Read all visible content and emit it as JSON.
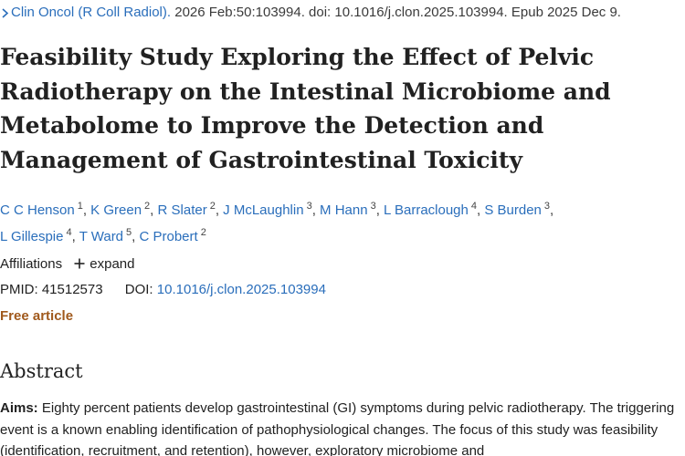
{
  "citation": {
    "journal": "Clin Oncol (R Coll Radiol).",
    "details": "2026 Feb:50:103994. doi: 10.1016/j.clon.2025.103994. Epub 2025 Dec 9."
  },
  "article": {
    "title": "Feasibility Study Exploring the Effect of Pelvic Radiotherapy on the Intestinal Microbiome and Metabolome to Improve the Detection and Management of Gastrointestinal Toxicity"
  },
  "authors": [
    {
      "name": "C C Henson",
      "aff": "1"
    },
    {
      "name": "K Green",
      "aff": "2"
    },
    {
      "name": "R Slater",
      "aff": "2"
    },
    {
      "name": "J McLaughlin",
      "aff": "3"
    },
    {
      "name": "M Hann",
      "aff": "3"
    },
    {
      "name": "L Barraclough",
      "aff": "4"
    },
    {
      "name": "S Burden",
      "aff": "3"
    },
    {
      "name": "L Gillespie",
      "aff": "4"
    },
    {
      "name": "T Ward",
      "aff": "5"
    },
    {
      "name": "C Probert",
      "aff": "2"
    }
  ],
  "affiliations": {
    "label": "Affiliations",
    "expand_label": "expand"
  },
  "ids": {
    "pmid_label": "PMID:",
    "pmid": "41512573",
    "doi_label": "DOI:",
    "doi": "10.1016/j.clon.2025.103994"
  },
  "free_article": "Free article",
  "abstract": {
    "heading": "Abstract",
    "aims_label": "Aims:",
    "aims_text": "Eighty percent patients develop gastrointestinal (GI) symptoms during pelvic radiotherapy. The triggering event is a known enabling identification of pathophysiological changes. The focus of this study was feasibility (identification, recruitment, and retention), however, exploratory microbiome and"
  },
  "colors": {
    "link": "#2a6ebb",
    "free_article": "#a0591c",
    "text": "#212121"
  },
  "icons": {
    "citation_chevron": "chevron-right-icon",
    "expand": "plus-icon"
  }
}
